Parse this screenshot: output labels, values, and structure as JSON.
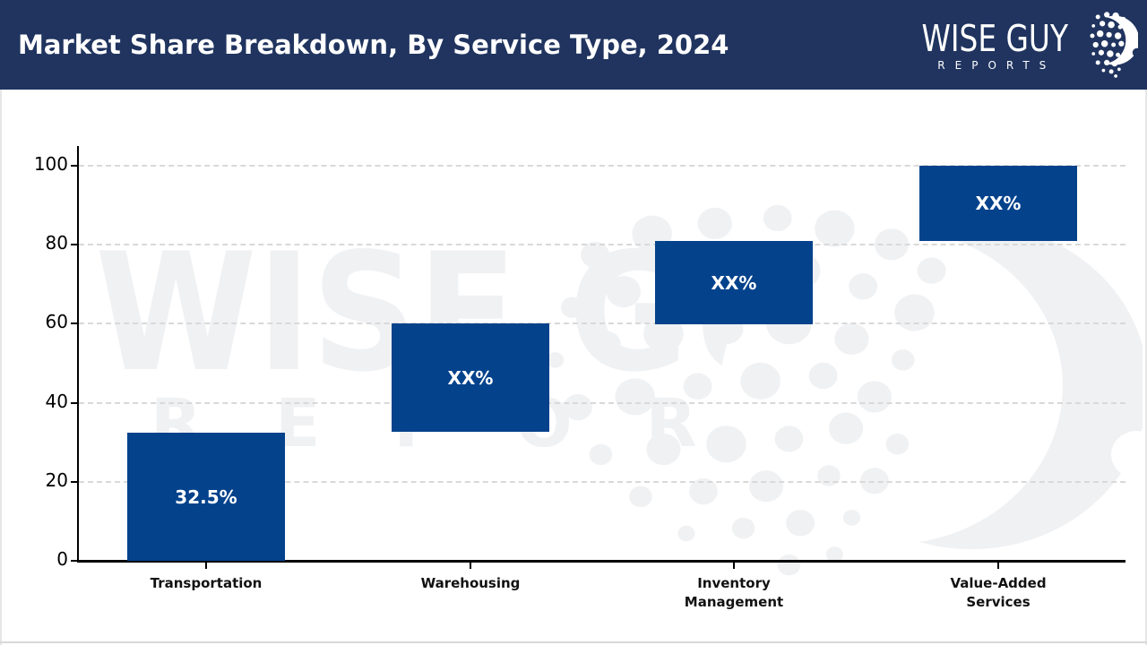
{
  "header": {
    "title": "Market Share Breakdown, By Service Type, 2024",
    "bg_color": "#20345f",
    "logo": {
      "line1": "WISE GUY",
      "line2": "REPORTS"
    }
  },
  "watermark": {
    "line1": "WISE GUY",
    "line2": "REPORTS"
  },
  "chart_data": {
    "type": "bar",
    "subtype": "waterfall",
    "title": "Market Share Breakdown, By Service Type, 2024",
    "xlabel": "",
    "ylabel": "",
    "ylim": [
      0,
      100
    ],
    "y_ticks": [
      0,
      20,
      40,
      60,
      80,
      100
    ],
    "grid": "horizontal-dashed",
    "legend": "none",
    "bar_color": "#04428c",
    "bar_label_color": "#ffffff",
    "categories": [
      "Transportation",
      "Warehousing",
      "Inventory Management",
      "Value-Added Services"
    ],
    "series": [
      {
        "name": "Market Share (%)",
        "segments": [
          {
            "category_lines": [
              "Transportation"
            ],
            "start": 0,
            "end": 32.5,
            "label": "32.5%"
          },
          {
            "category_lines": [
              "Warehousing"
            ],
            "start": 32.5,
            "end": 60,
            "label": "XX%"
          },
          {
            "category_lines": [
              "Inventory",
              "Management"
            ],
            "start": 60,
            "end": 81,
            "label": "XX%"
          },
          {
            "category_lines": [
              "Value-Added",
              "Services"
            ],
            "start": 81,
            "end": 100,
            "label": "XX%"
          }
        ]
      }
    ]
  }
}
